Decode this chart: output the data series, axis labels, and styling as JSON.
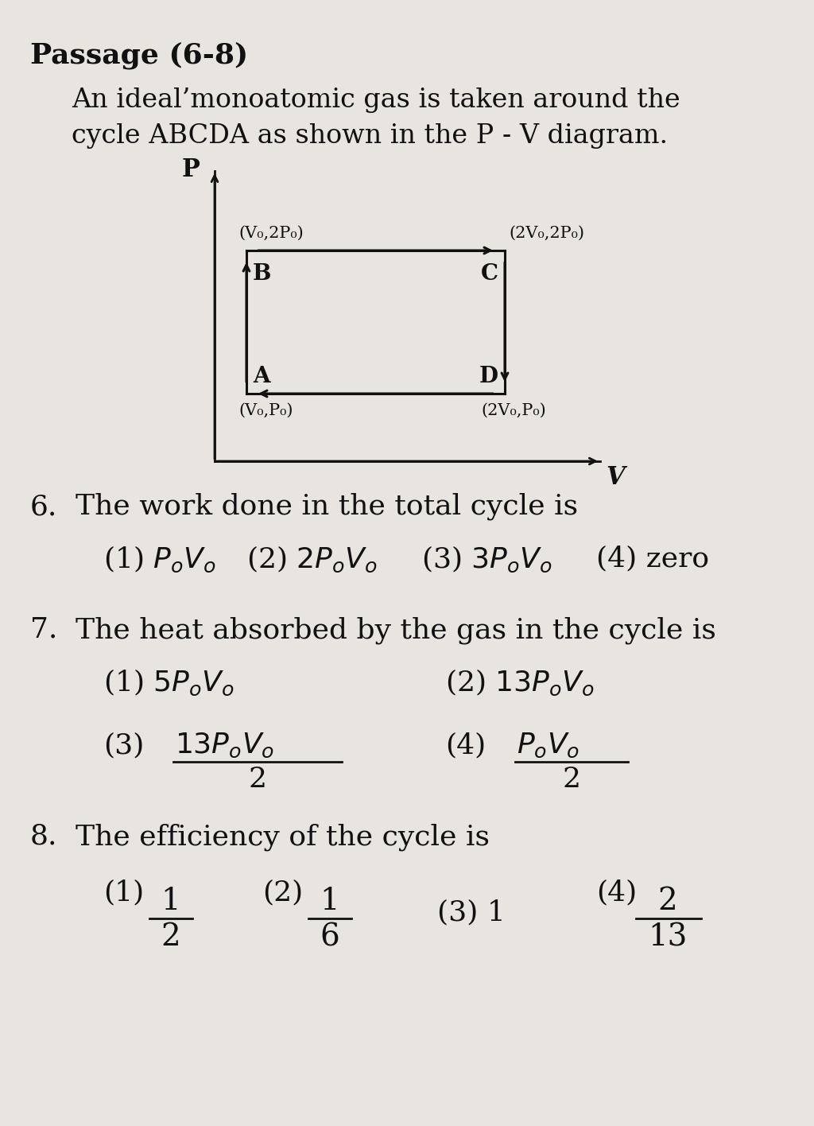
{
  "background_color": "#e8e5e0",
  "title_bold": "Passage (6-8)",
  "passage_line1": "An ideal’monoatomic gas is taken around the",
  "passage_line2": "cycle ABCDA as shown in the P - V diagram.",
  "diagram_ylabel": "P",
  "diagram_xlabel": "V",
  "label_A": "A",
  "label_B": "B",
  "label_C": "C",
  "label_D": "D",
  "coord_A": "(V₀,P₀)",
  "coord_B": "(V₀,2P₀)",
  "coord_C": "(2V₀,2P₀)",
  "coord_D": "(2V₀,P₀)",
  "text_color": "#111111"
}
